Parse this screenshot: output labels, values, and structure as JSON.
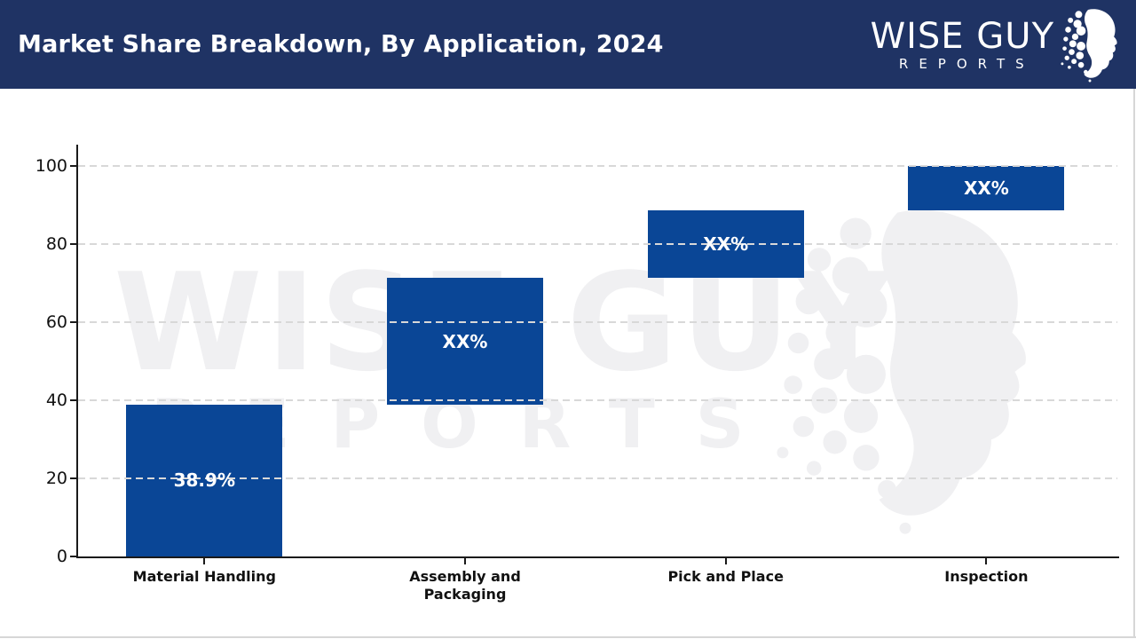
{
  "page": {
    "background": "#ffffff",
    "edge_line_color": "#d7d7d7"
  },
  "header": {
    "title": "Market Share Breakdown, By Application, 2024",
    "bg_color": "#1F3364",
    "text_color": "#ffffff",
    "logo": {
      "line1": "WISE GUY",
      "line2": "REPORTS"
    }
  },
  "chart_data": {
    "type": "bar",
    "variant": "waterfall",
    "title": "Market Share Breakdown, By Application, 2024",
    "categories": [
      "Material Handling",
      "Assembly and\nPackaging",
      "Pick and Place",
      "Inspection"
    ],
    "segments": [
      {
        "category": "Material Handling",
        "start": 0,
        "end": 38.9,
        "label": "38.9%"
      },
      {
        "category": "Assembly and Packaging",
        "start": 38.9,
        "end": 71.3,
        "label": "XX%"
      },
      {
        "category": "Pick and Place",
        "start": 71.3,
        "end": 88.6,
        "label": "XX%"
      },
      {
        "category": "Inspection",
        "start": 88.6,
        "end": 100,
        "label": "XX%"
      }
    ],
    "bar_color": "#0A4696",
    "bar_label_color": "#ffffff",
    "ylim": [
      0,
      100
    ],
    "yticks": [
      0,
      20,
      40,
      60,
      80,
      100
    ],
    "grid": {
      "axis": "y",
      "style": "dashed",
      "color": "#d8d8d8",
      "above_bars": true
    },
    "legend": "none",
    "watermark": {
      "line1": "WISE GUY",
      "line2": "REPORTS"
    }
  }
}
